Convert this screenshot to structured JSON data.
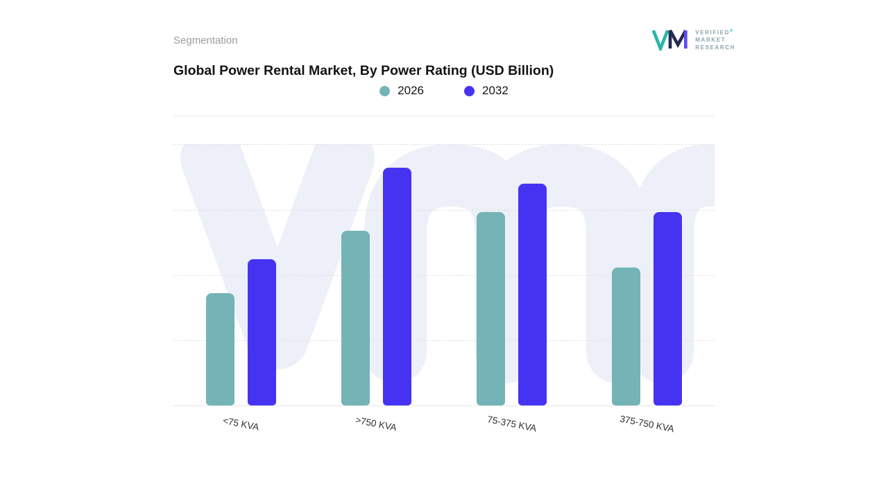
{
  "page": {
    "section_label": "Segmentation",
    "title": "Global Power Rental Market, By Power Rating (USD Billion)"
  },
  "logo": {
    "mark_name": "vmr-monogram",
    "lines": [
      "VERIFIED",
      "MARKET",
      "RESEARCH"
    ],
    "registered": "®",
    "colors": {
      "teal": "#2ab4ab",
      "navy": "#232a52",
      "purple": "#5b4cf0",
      "text": "#8ba3ab"
    }
  },
  "legend": {
    "items": [
      {
        "label": "2026",
        "color": "#74b4b6"
      },
      {
        "label": "2032",
        "color": "#4633f2"
      }
    ]
  },
  "chart_data": {
    "type": "bar",
    "title": "Global Power Rental Market, By Power Rating (USD Billion)",
    "categories": [
      "<75 KVA",
      ">750 KVA",
      "75-375 KVA",
      "375-750 KVA"
    ],
    "series": [
      {
        "name": "2026",
        "color": "#74b4b6",
        "values": [
          43,
          67,
          74,
          53
        ]
      },
      {
        "name": "2032",
        "color": "#4633f2",
        "values": [
          56,
          91,
          85,
          74
        ]
      }
    ],
    "ylim": [
      0,
      100
    ],
    "xlabel": "",
    "ylabel": "",
    "grid": "horizontal-dashed",
    "legend_position": "top"
  },
  "watermark": {
    "text": "vmr",
    "color": "#edeff9"
  }
}
